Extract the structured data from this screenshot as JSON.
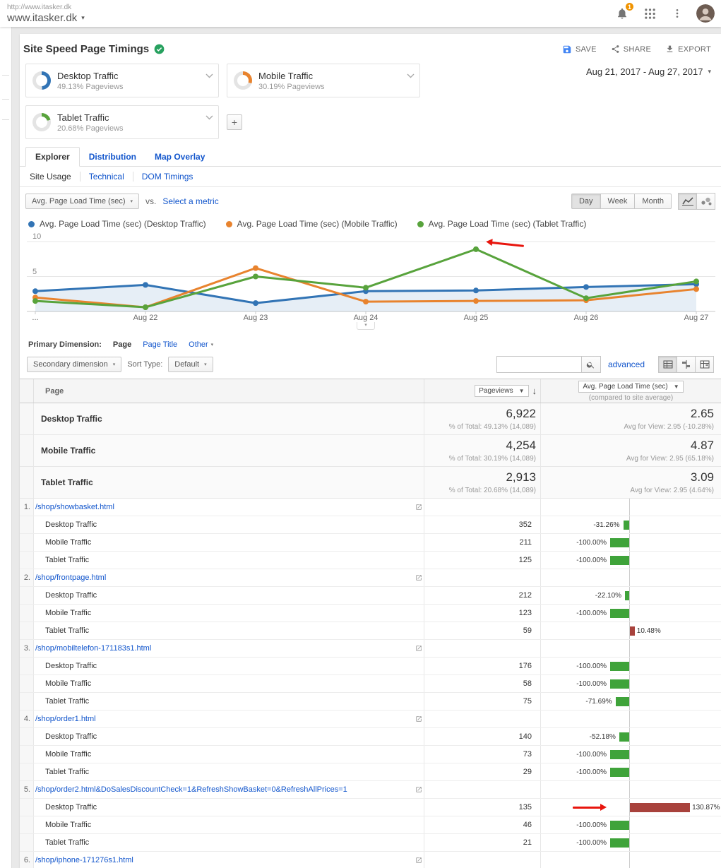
{
  "topbar": {
    "url": "http://www.itasker.dk",
    "account": "www.itasker.dk",
    "notification_count": "1"
  },
  "report": {
    "title": "Site Speed Page Timings",
    "save_label": "SAVE",
    "share_label": "SHARE",
    "export_label": "EXPORT",
    "date_range": "Aug 21, 2017 - Aug 27, 2017"
  },
  "segments": [
    {
      "name": "Desktop Traffic",
      "detail": "49.13% Pageviews",
      "color": "#3274b5",
      "pct": 49.13
    },
    {
      "name": "Mobile Traffic",
      "detail": "30.19% Pageviews",
      "color": "#e8832e",
      "pct": 30.19
    },
    {
      "name": "Tablet Traffic",
      "detail": "20.68% Pageviews",
      "color": "#58a33c",
      "pct": 20.68
    }
  ],
  "tabs": [
    {
      "label": "Explorer",
      "active": true
    },
    {
      "label": "Distribution",
      "active": false
    },
    {
      "label": "Map Overlay",
      "active": false
    }
  ],
  "subtabs": [
    {
      "label": "Site Usage",
      "active": true
    },
    {
      "label": "Technical",
      "active": false
    },
    {
      "label": "DOM Timings",
      "active": false
    }
  ],
  "metric_bar": {
    "metric": "Avg. Page Load Time (sec)",
    "vs": "vs.",
    "select_metric": "Select a metric",
    "granularity": [
      "Day",
      "Week",
      "Month"
    ],
    "active_granularity": "Day"
  },
  "chart_data": {
    "type": "line",
    "x": [
      "...",
      "Aug 22",
      "Aug 23",
      "Aug 24",
      "Aug 25",
      "Aug 26",
      "Aug 27"
    ],
    "ylim": [
      0,
      10
    ],
    "yticks": [
      5,
      10
    ],
    "grid": true,
    "legend_position": "top",
    "series": [
      {
        "name": "Avg. Page Load Time (sec) (Desktop Traffic)",
        "color": "#3274b5",
        "area": true,
        "values": [
          2.9,
          3.8,
          1.2,
          2.9,
          3.0,
          3.5,
          3.9
        ]
      },
      {
        "name": "Avg. Page Load Time (sec) (Mobile Traffic)",
        "color": "#e8832e",
        "area": false,
        "values": [
          2.0,
          0.6,
          6.2,
          1.4,
          1.5,
          1.6,
          3.2
        ]
      },
      {
        "name": "Avg. Page Load Time (sec) (Tablet Traffic)",
        "color": "#58a33c",
        "area": false,
        "values": [
          1.5,
          0.6,
          5.0,
          3.4,
          8.9,
          1.9,
          4.3
        ]
      }
    ],
    "annotations": [
      {
        "type": "red-arrow",
        "target": "Tablet Traffic peak on Aug 25"
      }
    ]
  },
  "primary_dimension": {
    "label": "Primary Dimension:",
    "options": [
      {
        "label": "Page",
        "active": true
      },
      {
        "label": "Page Title",
        "active": false
      },
      {
        "label": "Other",
        "active": false
      }
    ]
  },
  "controls": {
    "secondary_dimension": "Secondary dimension",
    "sort_type_label": "Sort Type:",
    "sort_type_value": "Default",
    "advanced": "advanced",
    "search_value": ""
  },
  "table": {
    "columns": {
      "page": "Page",
      "pageviews": "Pageviews",
      "metric": "Avg. Page Load Time (sec)",
      "metric_sub": "(compared to site average)"
    },
    "summary": [
      {
        "label": "Desktop Traffic",
        "pageviews": "6,922",
        "pageviews_sub": "% of Total: 49.13% (14,089)",
        "metric": "2.65",
        "metric_sub": "Avg for View: 2.95 (-10.28%)"
      },
      {
        "label": "Mobile Traffic",
        "pageviews": "4,254",
        "pageviews_sub": "% of Total: 30.19% (14,089)",
        "metric": "4.87",
        "metric_sub": "Avg for View: 2.95 (65.18%)"
      },
      {
        "label": "Tablet Traffic",
        "pageviews": "2,913",
        "pageviews_sub": "% of Total: 20.68% (14,089)",
        "metric": "3.09",
        "metric_sub": "Avg for View: 2.95 (4.64%)"
      }
    ],
    "rows": [
      {
        "index": "1.",
        "page": "/shop/showbasket.html",
        "segments": [
          {
            "label": "Desktop Traffic",
            "pageviews": "352",
            "delta": "-31.26%",
            "dir": "neg"
          },
          {
            "label": "Mobile Traffic",
            "pageviews": "211",
            "delta": "-100.00%",
            "dir": "neg"
          },
          {
            "label": "Tablet Traffic",
            "pageviews": "125",
            "delta": "-100.00%",
            "dir": "neg"
          }
        ]
      },
      {
        "index": "2.",
        "page": "/shop/frontpage.html",
        "segments": [
          {
            "label": "Desktop Traffic",
            "pageviews": "212",
            "delta": "-22.10%",
            "dir": "neg"
          },
          {
            "label": "Mobile Traffic",
            "pageviews": "123",
            "delta": "-100.00%",
            "dir": "neg"
          },
          {
            "label": "Tablet Traffic",
            "pageviews": "59",
            "delta": "10.48%",
            "dir": "pos"
          }
        ]
      },
      {
        "index": "3.",
        "page": "/shop/mobiltelefon-171183s1.html",
        "segments": [
          {
            "label": "Desktop Traffic",
            "pageviews": "176",
            "delta": "-100.00%",
            "dir": "neg"
          },
          {
            "label": "Mobile Traffic",
            "pageviews": "58",
            "delta": "-100.00%",
            "dir": "neg"
          },
          {
            "label": "Tablet Traffic",
            "pageviews": "75",
            "delta": "-71.69%",
            "dir": "neg"
          }
        ]
      },
      {
        "index": "4.",
        "page": "/shop/order1.html",
        "segments": [
          {
            "label": "Desktop Traffic",
            "pageviews": "140",
            "delta": "-52.18%",
            "dir": "neg"
          },
          {
            "label": "Mobile Traffic",
            "pageviews": "73",
            "delta": "-100.00%",
            "dir": "neg"
          },
          {
            "label": "Tablet Traffic",
            "pageviews": "29",
            "delta": "-100.00%",
            "dir": "neg"
          }
        ]
      },
      {
        "index": "5.",
        "page": "/shop/order2.html&DoSalesDiscountCheck=1&RefreshShowBasket=0&RefreshAllPrices=1",
        "segments": [
          {
            "label": "Desktop Traffic",
            "pageviews": "135",
            "delta": "130.87%",
            "dir": "pos",
            "arrow": true
          },
          {
            "label": "Mobile Traffic",
            "pageviews": "46",
            "delta": "-100.00%",
            "dir": "neg"
          },
          {
            "label": "Tablet Traffic",
            "pageviews": "21",
            "delta": "-100.00%",
            "dir": "neg"
          }
        ]
      },
      {
        "index": "6.",
        "page": "/shop/iphone-171276s1.html",
        "segments": []
      }
    ]
  },
  "glyphs": {
    "caret_down": "▾",
    "select_caret": "▼",
    "sort_down": "↓",
    "plus": "+"
  },
  "colors": {
    "positive_bar": "#a8423c",
    "negative_bar": "#3fa33a",
    "link": "#1155cc",
    "annotation": "#e8150d"
  }
}
